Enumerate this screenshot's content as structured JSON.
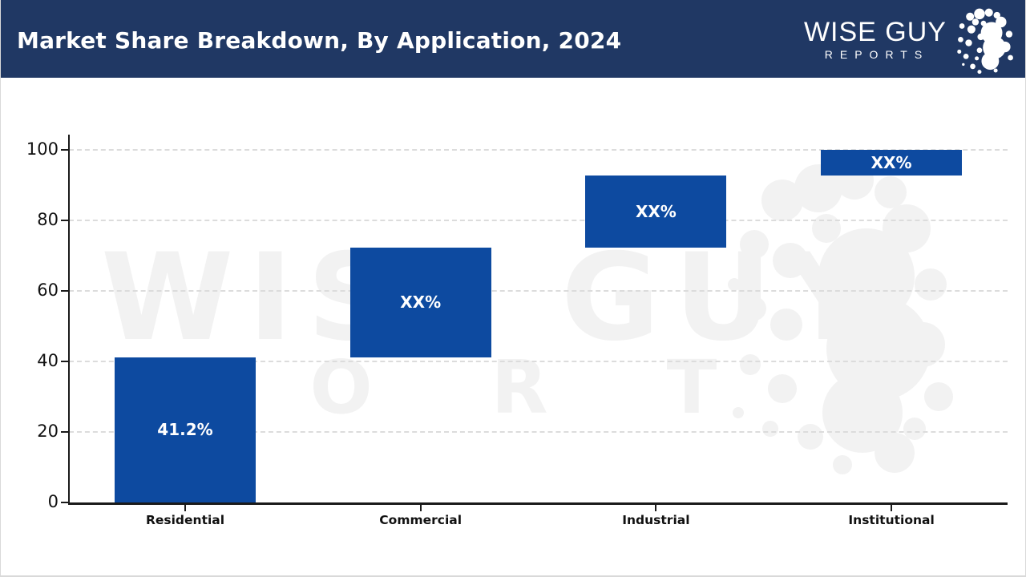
{
  "header": {
    "title": "Market Share Breakdown, By Application, 2024",
    "bg_color": "#203864",
    "logo": {
      "line1": "WISE GUY",
      "line2": "REPORTS"
    }
  },
  "watermark": {
    "line1": "WISE GUY",
    "line2": "P O R T S"
  },
  "chart_data": {
    "type": "bar",
    "subtype": "floating-waterfall",
    "title": "Market Share Breakdown, By Application, 2024",
    "xlabel": "",
    "ylabel": "",
    "categories": [
      "Residential",
      "Commercial",
      "Industrial",
      "Institutional"
    ],
    "segments": [
      {
        "category": "Residential",
        "start": 0,
        "end": 41.2,
        "label": "41.2%"
      },
      {
        "category": "Commercial",
        "start": 41.2,
        "end": 72.3,
        "label": "XX%"
      },
      {
        "category": "Industrial",
        "start": 72.3,
        "end": 92.7,
        "label": "XX%"
      },
      {
        "category": "Institutional",
        "start": 92.7,
        "end": 100,
        "label": "XX%"
      }
    ],
    "yticks": [
      0,
      20,
      40,
      60,
      80,
      100
    ],
    "ylim": [
      0,
      105
    ],
    "grid": "horizontal-dashed",
    "legend": "none",
    "bar_color": "#0d4aa0",
    "label_color": "#ffffff",
    "axis_color": "#1a1a1a",
    "gridline_color": "#dcdcdc"
  }
}
